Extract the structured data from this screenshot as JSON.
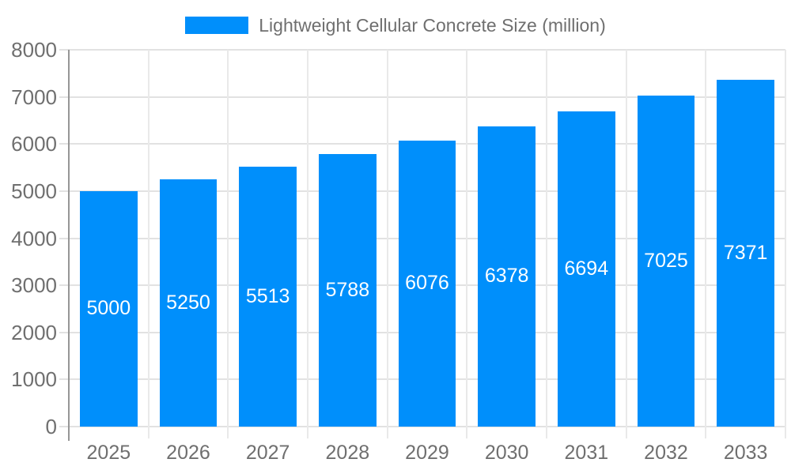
{
  "legend": {
    "label": "Lightweight Cellular Concrete Size (million)"
  },
  "colors": {
    "accent": "#008FFB",
    "axis_text": "#6f6f6f",
    "axis_line": "#969696",
    "grid": "#e2e2e2",
    "grid_light": "#e9e9e9",
    "bar_label": "#ffffff",
    "background": "#ffffff"
  },
  "chart_data": {
    "type": "bar",
    "title": "Lightweight Cellular Concrete Size (million)",
    "categories": [
      "2025",
      "2026",
      "2027",
      "2028",
      "2029",
      "2030",
      "2031",
      "2032",
      "2033"
    ],
    "values": [
      5000,
      5250,
      5513,
      5788,
      6076,
      6378,
      6694,
      7025,
      7371
    ],
    "xlabel": "",
    "ylabel": "",
    "ylim": [
      0,
      8000
    ],
    "ytick_step": 1000,
    "y_tick_labels": [
      "0",
      "1000",
      "2000",
      "3000",
      "4000",
      "5000",
      "6000",
      "7000",
      "8000"
    ],
    "grid": true,
    "legend_position": "top",
    "data_labels": "inside-center",
    "bar_width_fraction": 0.72
  }
}
